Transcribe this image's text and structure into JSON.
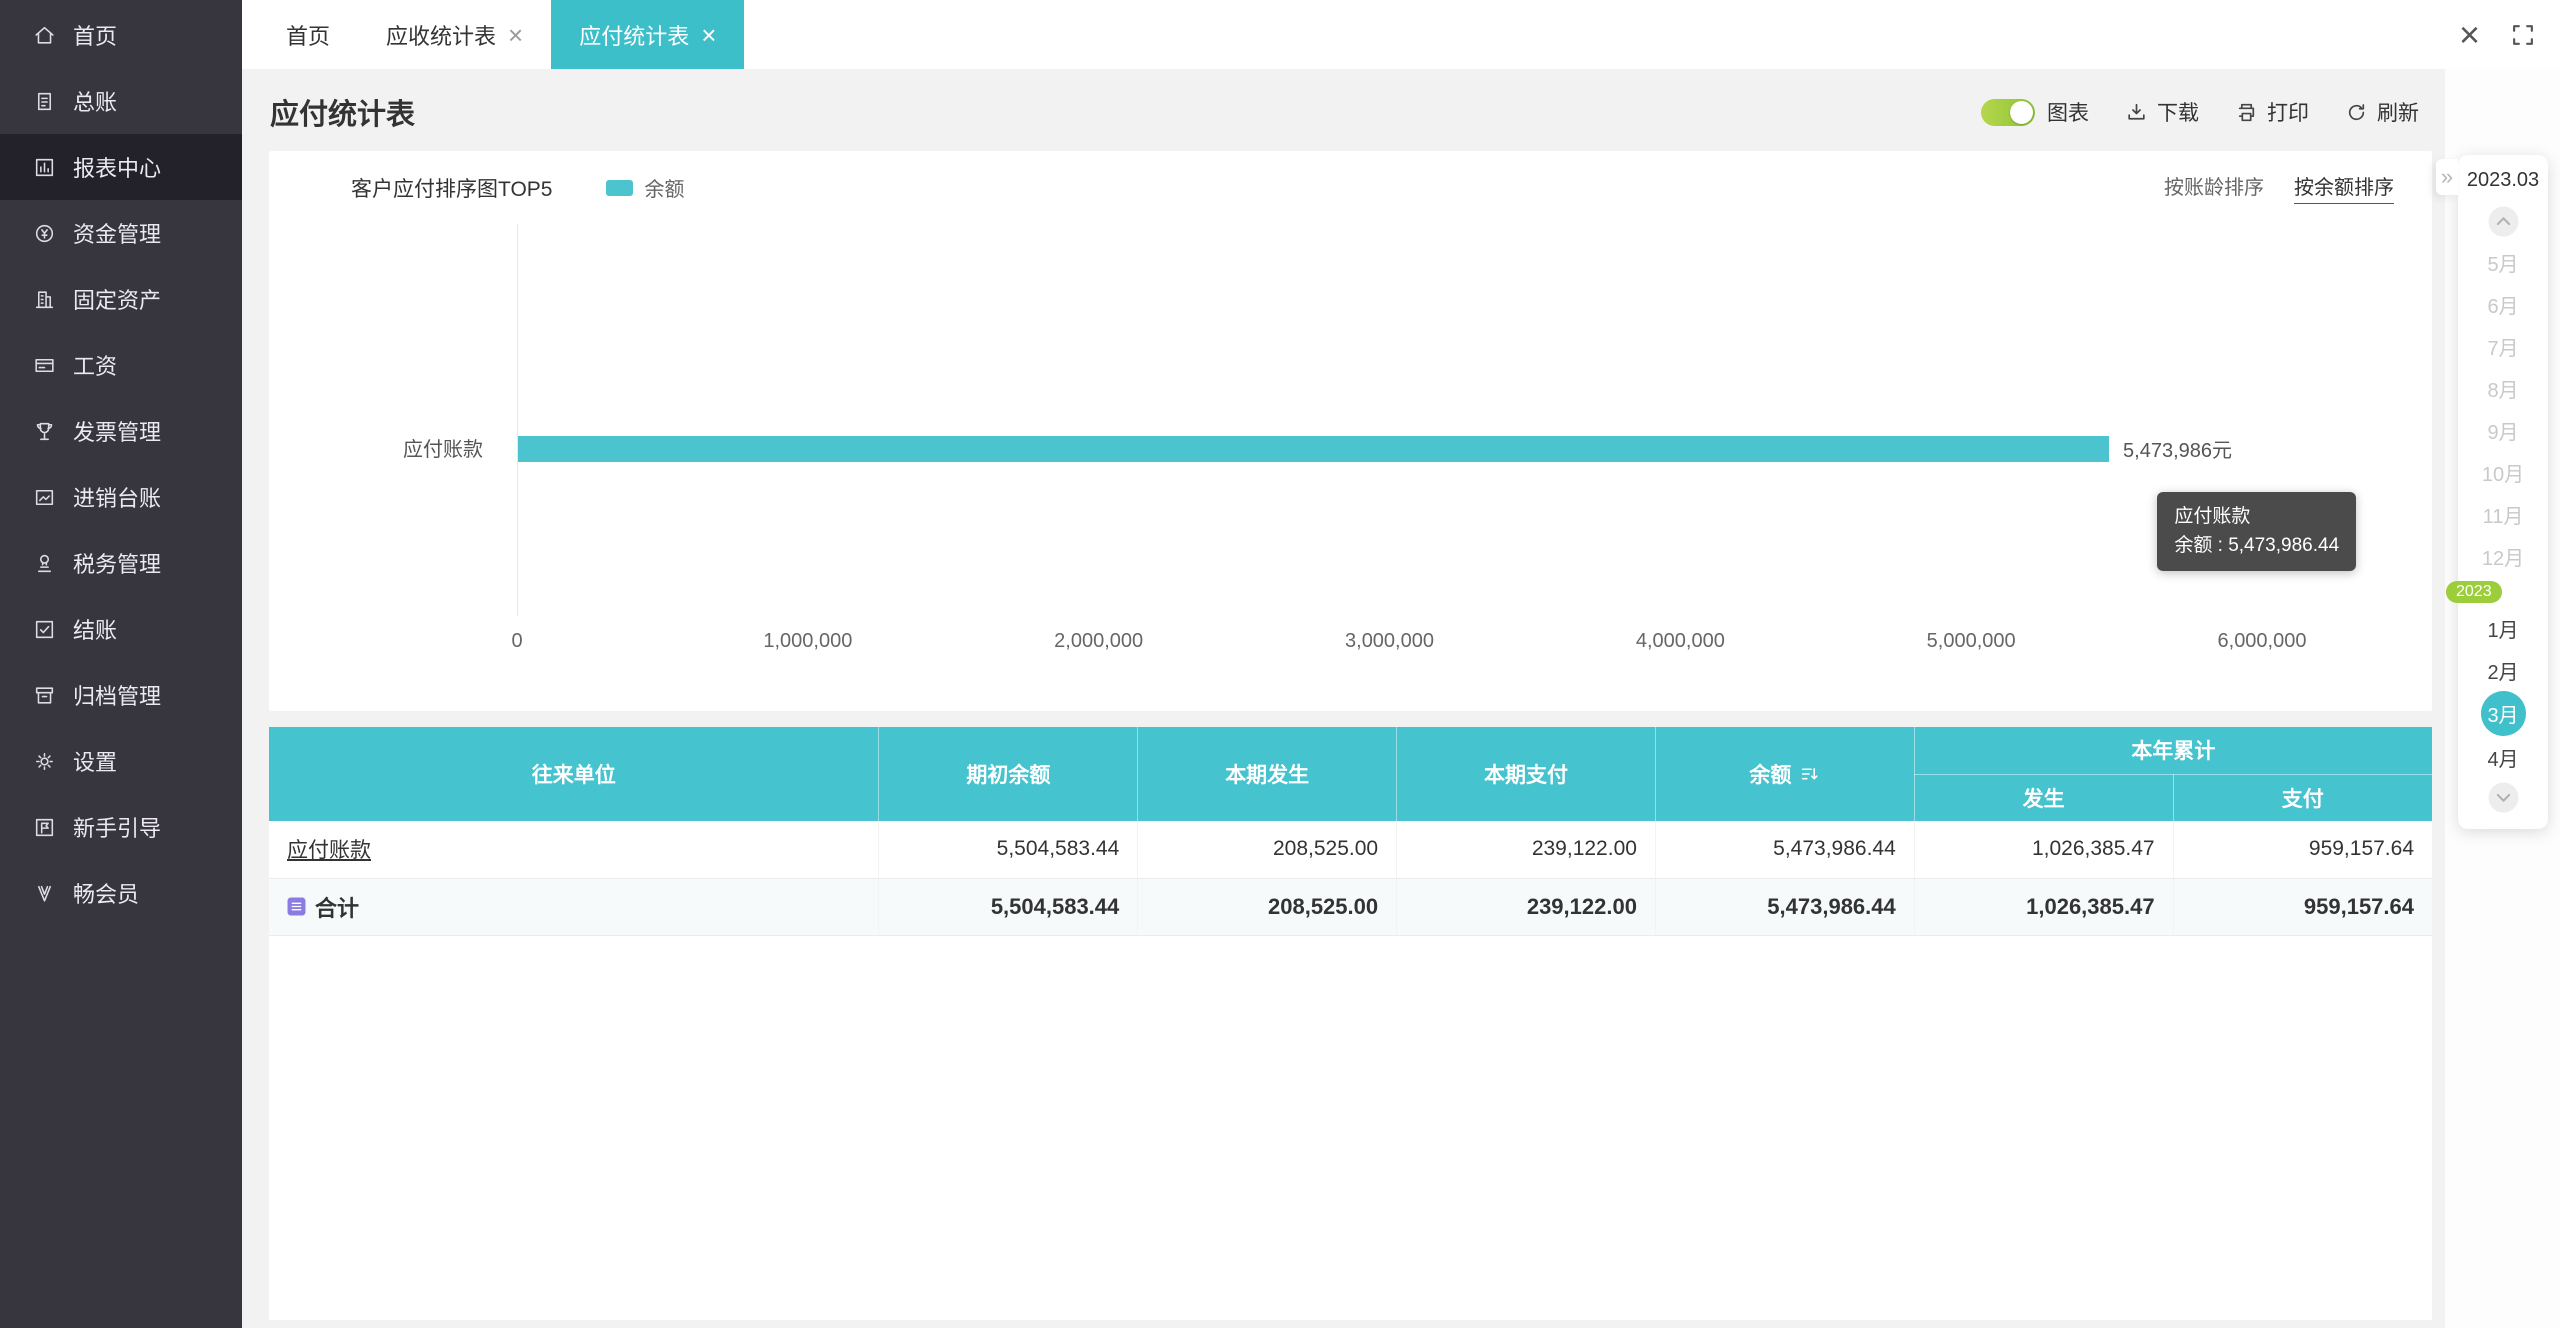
{
  "icons": {
    "close": "×",
    "tab_close": "×",
    "collapse": "»"
  },
  "sidebar": {
    "items": [
      {
        "label": "首页"
      },
      {
        "label": "总账"
      },
      {
        "label": "报表中心",
        "active": true
      },
      {
        "label": "资金管理"
      },
      {
        "label": "固定资产"
      },
      {
        "label": "工资"
      },
      {
        "label": "发票管理"
      },
      {
        "label": "进销台账"
      },
      {
        "label": "税务管理"
      },
      {
        "label": "结账"
      },
      {
        "label": "归档管理"
      },
      {
        "label": "设置"
      },
      {
        "label": "新手引导"
      },
      {
        "label": "畅会员"
      }
    ]
  },
  "tabs": [
    {
      "label": "首页",
      "closable": false,
      "active": false
    },
    {
      "label": "应收统计表",
      "closable": true,
      "active": false
    },
    {
      "label": "应付统计表",
      "closable": true,
      "active": true
    }
  ],
  "page": {
    "title": "应付统计表"
  },
  "toolbar": {
    "chart_toggle": "图表",
    "download": "下载",
    "print": "打印",
    "refresh": "刷新"
  },
  "chart": {
    "title": "客户应付排序图TOP5",
    "legend_label": "余额",
    "sort_by_age": "按账龄排序",
    "sort_by_balance": "按余额排序",
    "bar_value_label": "5,473,986元",
    "tooltip_title": "应付账款",
    "tooltip_text": "余额 : 5,473,986.44"
  },
  "chart_data": {
    "type": "bar",
    "orientation": "horizontal",
    "title": "客户应付排序图TOP5",
    "legend": [
      "余额"
    ],
    "legend_position": "top",
    "categories": [
      "应付账款"
    ],
    "values": [
      5473986.44
    ],
    "value_labels": [
      "5,473,986元"
    ],
    "xlabel": "",
    "ylabel": "",
    "xlim": [
      0,
      6000000
    ],
    "grid": false,
    "x_ticks": [
      "0",
      "1,000,000",
      "2,000,000",
      "3,000,000",
      "4,000,000",
      "5,000,000",
      "6,000,000"
    ],
    "bar_color": "#4cc4d0"
  },
  "table": {
    "headers": {
      "unit": "往来单位",
      "opening": "期初余额",
      "current_incurred": "本期发生",
      "current_paid": "本期支付",
      "balance": "余额",
      "ytd": "本年累计",
      "ytd_incurred": "发生",
      "ytd_paid": "支付"
    },
    "rows": [
      {
        "unit": "应付账款",
        "opening": "5,504,583.44",
        "incurred": "208,525.00",
        "paid": "239,122.00",
        "balance": "5,473,986.44",
        "ytd_incurred": "1,026,385.47",
        "ytd_paid": "959,157.64"
      }
    ],
    "total": {
      "label": "合计",
      "opening": "5,504,583.44",
      "incurred": "208,525.00",
      "paid": "239,122.00",
      "balance": "5,473,986.44",
      "ytd_incurred": "1,026,385.47",
      "ytd_paid": "959,157.64"
    }
  },
  "month_panel": {
    "period": "2023.03",
    "year_badge": "2023",
    "months": [
      {
        "label": "5月",
        "state": "disabled"
      },
      {
        "label": "6月",
        "state": "disabled"
      },
      {
        "label": "7月",
        "state": "disabled"
      },
      {
        "label": "8月",
        "state": "disabled"
      },
      {
        "label": "9月",
        "state": "disabled"
      },
      {
        "label": "10月",
        "state": "disabled"
      },
      {
        "label": "11月",
        "state": "disabled"
      },
      {
        "label": "12月",
        "state": "disabled"
      },
      {
        "label": "1月",
        "state": "normal"
      },
      {
        "label": "2月",
        "state": "normal"
      },
      {
        "label": "3月",
        "state": "selected"
      },
      {
        "label": "4月",
        "state": "normal"
      }
    ]
  }
}
